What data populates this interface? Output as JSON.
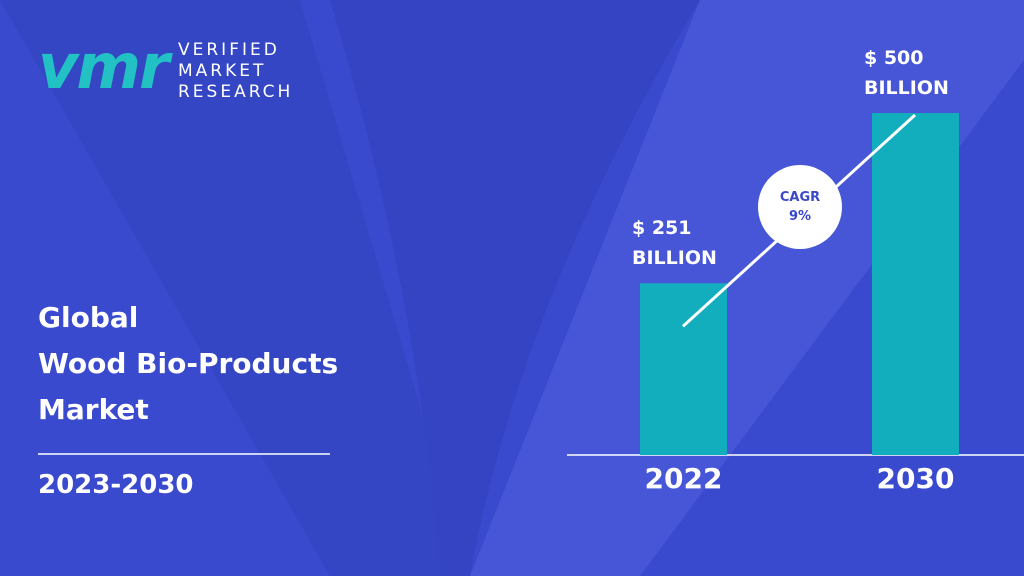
{
  "brand": {
    "mark": "vmr",
    "lines": [
      "VERIFIED",
      "MARKET",
      "RESEARCH"
    ]
  },
  "heading": {
    "lines": [
      "Global",
      "Wood Bio-Products",
      "Market"
    ],
    "period": "2023-2030"
  },
  "chart_data": {
    "type": "bar",
    "categories": [
      "2022",
      "2030"
    ],
    "values": [
      251,
      500
    ],
    "value_labels": [
      "$ 251 BILLION",
      "$ 500 BILLION"
    ],
    "color": "#13aebd",
    "annotation": {
      "title": "CAGR",
      "value": "9%"
    }
  }
}
